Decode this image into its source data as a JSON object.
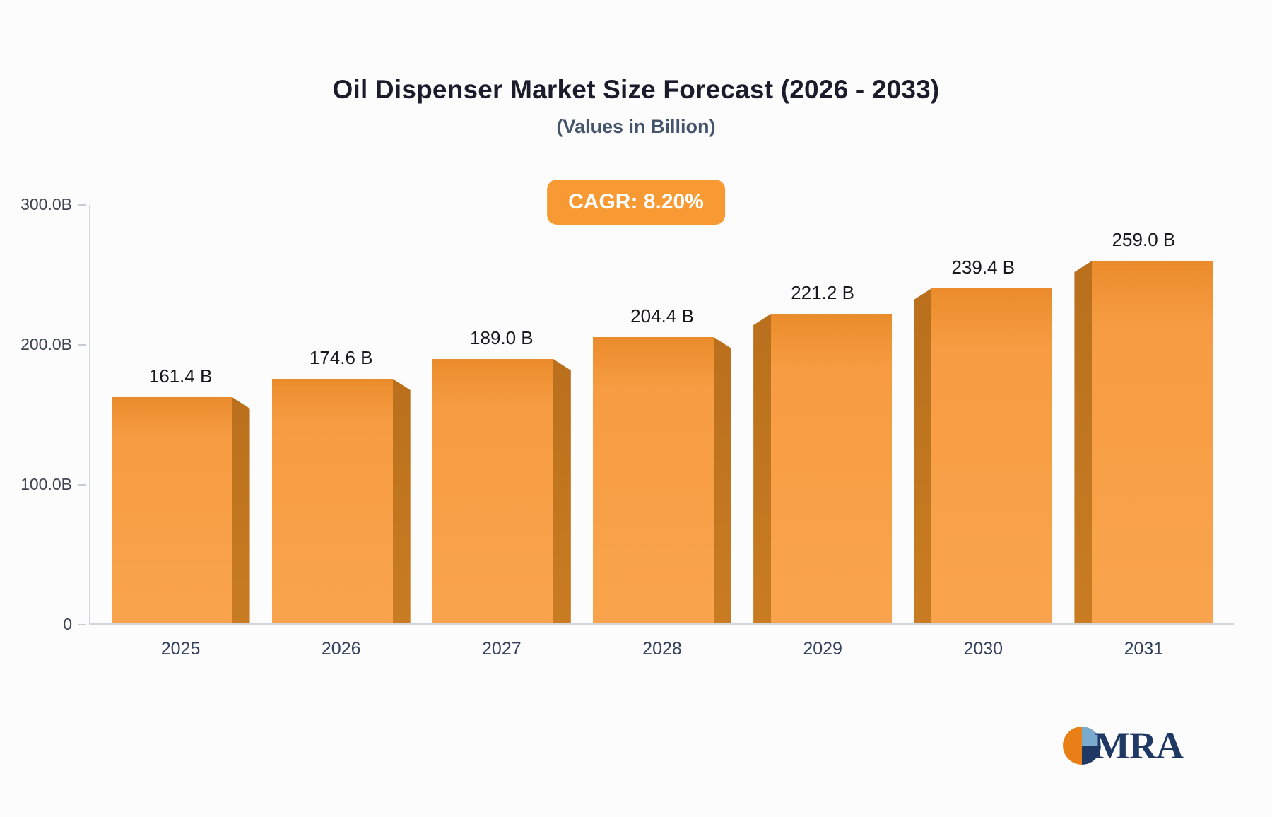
{
  "chart_data": {
    "type": "bar",
    "title": "Oil Dispenser Market Size Forecast (2026 - 2033)",
    "subtitle": "(Values in Billion)",
    "cagr_label": "CAGR: 8.20%",
    "categories": [
      "2025",
      "2026",
      "2027",
      "2028",
      "2029",
      "2030",
      "2031"
    ],
    "values": [
      161.4,
      174.6,
      189.0,
      204.4,
      221.2,
      239.4,
      259.0
    ],
    "value_labels": [
      "161.4 B",
      "174.6 B",
      "189.0 B",
      "204.4 B",
      "221.2 B",
      "239.4 B",
      "259.0 B"
    ],
    "xlabel": "",
    "ylabel": "",
    "ylim": [
      0,
      300
    ],
    "y_ticks": [
      {
        "label": "300.0B",
        "value": 300
      },
      {
        "label": "200.0B",
        "value": 200
      },
      {
        "label": "100.0B",
        "value": 100
      },
      {
        "label": "0",
        "value": 0
      }
    ],
    "grid": "off",
    "legend": "none",
    "bar_color": "#f79c42",
    "bar_side_color": "#c1751d",
    "badge_color": "#f79a33"
  },
  "logo": {
    "text": "MRA",
    "colors": {
      "orange": "#e87f17",
      "light_blue": "#7aaacd",
      "navy": "#1f3864"
    }
  }
}
